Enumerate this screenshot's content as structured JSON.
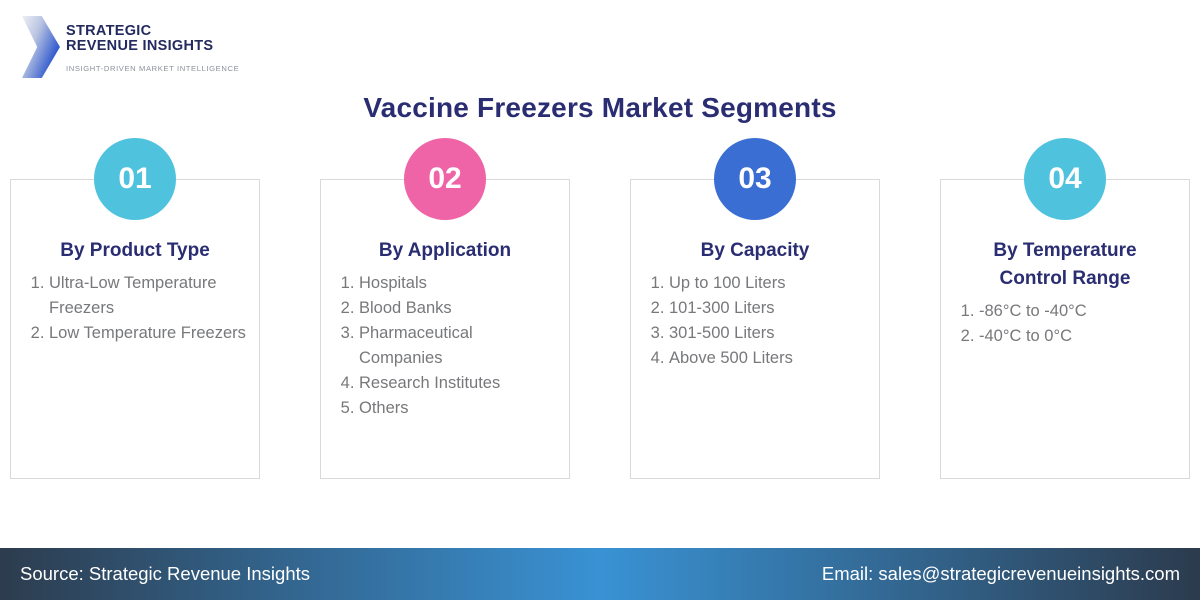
{
  "brand": {
    "name_line1": "STRATEGIC",
    "name_line2": "REVENUE INSIGHTS",
    "tagline": "INSIGHT-DRIVEN MARKET INTELLIGENCE"
  },
  "title": "Vaccine Freezers Market Segments",
  "segments": [
    {
      "number": "01",
      "accent": "#4fc3de",
      "heading": "By Product Type",
      "items": [
        "Ultra-Low Temperature Freezers",
        "Low Temperature Freezers"
      ]
    },
    {
      "number": "02",
      "accent": "#ef64a6",
      "heading": "By Application",
      "items": [
        "Hospitals",
        "Blood Banks",
        "Pharmaceutical Companies",
        "Research Institutes",
        "Others"
      ]
    },
    {
      "number": "03",
      "accent": "#3a6ed3",
      "heading": "By Capacity",
      "items": [
        "Up to 100 Liters",
        "101-300 Liters",
        "301-500 Liters",
        "Above 500 Liters"
      ]
    },
    {
      "number": "04",
      "accent": "#4fc3de",
      "heading": "By Temperature Control Range",
      "items": [
        "-86°C to -40°C",
        "-40°C to 0°C"
      ]
    }
  ],
  "footer": {
    "source": "Source: Strategic Revenue Insights",
    "email": "Email: sales@strategicrevenueinsights.com"
  },
  "colors": {
    "title_text": "#2a2d72",
    "list_text": "#77787b",
    "card_border": "#d9d9d9",
    "logo_navy": "#232a60",
    "logo_gray": "#8b909b",
    "footer_dark": "#2d3c4e",
    "footer_blue": "#3992d4"
  }
}
